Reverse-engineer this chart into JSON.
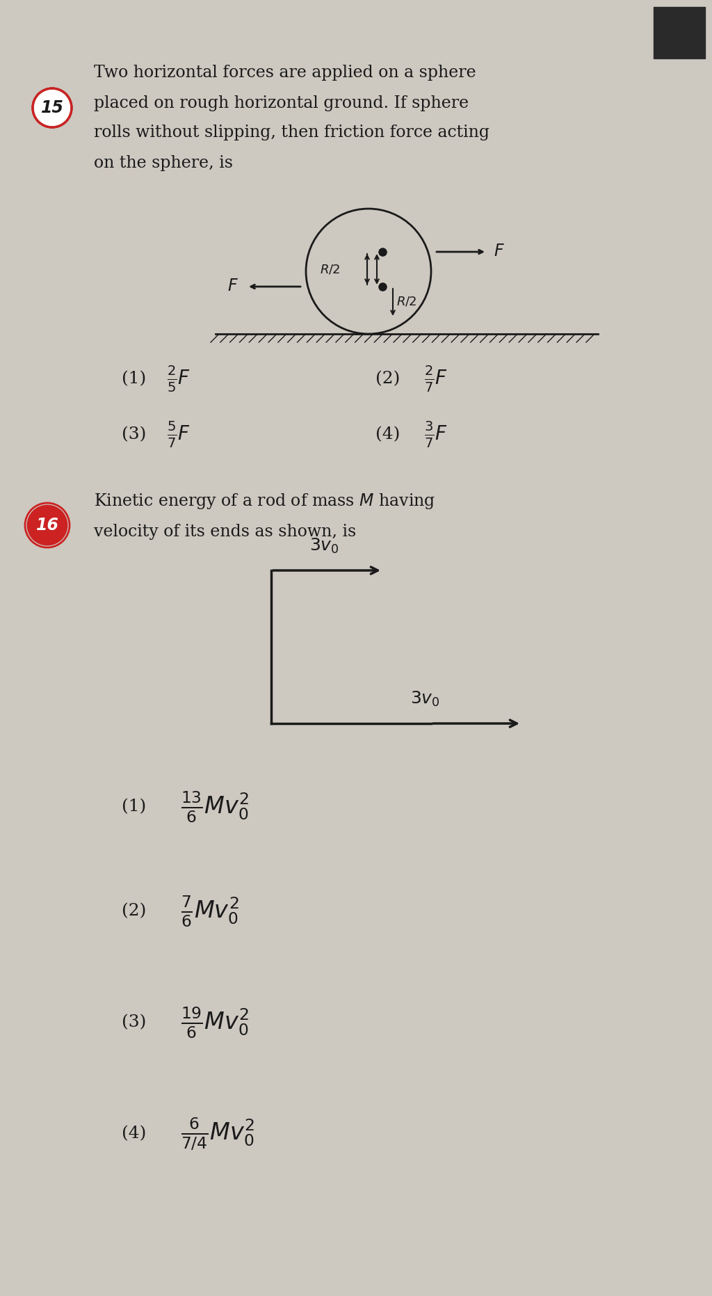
{
  "bg_color": "#cdc8c0",
  "text_color": "#1a1a1a",
  "q15_number": "15",
  "q15_text_line1": "Two horizontal forces are applied on a sphere",
  "q15_text_line2": "placed on rough horizontal ground. If sphere",
  "q15_text_line3": "rolls without slipping, then friction force acting",
  "q15_text_line4": "on the sphere, is",
  "q16_number": "16",
  "q16_text_line1": "Kinetic energy of a rod of mass $M$ having",
  "q16_text_line2": "velocity of its ends as shown, is",
  "rod_top_label": "3v_0",
  "rod_bottom_label": "3v_0"
}
